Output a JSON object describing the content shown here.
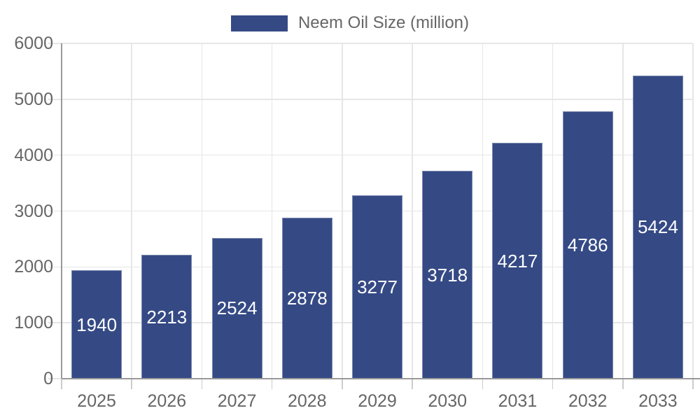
{
  "chart_data": {
    "type": "bar",
    "title": "",
    "series_name": "Neem Oil Size (million)",
    "categories": [
      "2025",
      "2026",
      "2027",
      "2028",
      "2029",
      "2030",
      "2031",
      "2032",
      "2033"
    ],
    "values": [
      1940,
      2213,
      2524,
      2878,
      3277,
      3718,
      4217,
      4786,
      5424
    ],
    "xlabel": "",
    "ylabel": "",
    "ylim": [
      0,
      6000
    ],
    "yticks": [
      0,
      1000,
      2000,
      3000,
      4000,
      5000,
      6000
    ],
    "grid": true,
    "legend_position": "top-center",
    "bar_color": "#354a85",
    "bar_label_color": "#ffffff",
    "axis_line_color": "#999999",
    "gridline_color": "#e6e6e6",
    "axis_text_color": "#666666"
  }
}
